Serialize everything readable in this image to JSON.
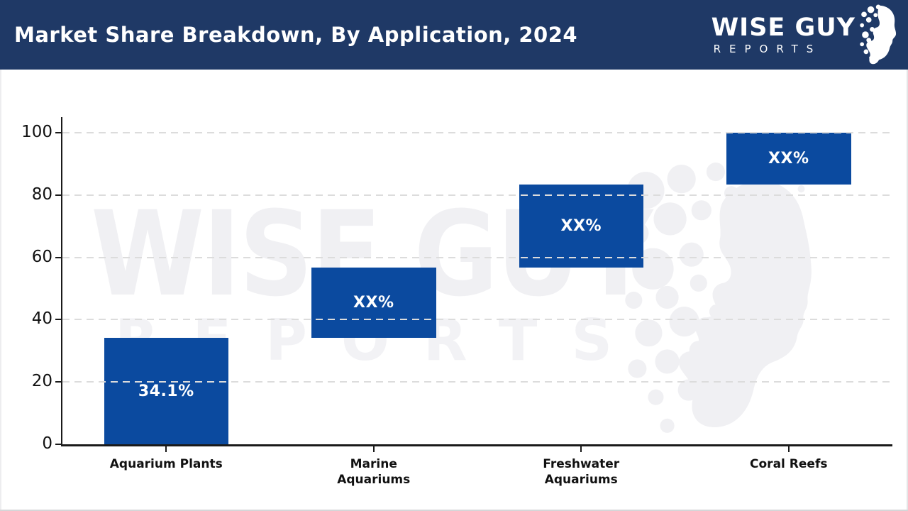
{
  "header": {
    "title": "Market Share Breakdown, By Application, 2024",
    "brand": {
      "name": "WISE GUY",
      "sub": "REPORTS"
    }
  },
  "watermark": {
    "line1": "WISE GUY",
    "line2": "REPORTS"
  },
  "chart_data": {
    "type": "bar",
    "subtype": "floating-segment-waterfall",
    "title": "Market Share Breakdown, By Application, 2024",
    "categories": [
      "Aquarium Plants",
      "Marine Aquariums",
      "Freshwater Aquariums",
      "Coral Reefs"
    ],
    "segments": [
      {
        "category": "Aquarium Plants",
        "from": 0,
        "to": 34.1,
        "label": "34.1%"
      },
      {
        "category": "Marine Aquariums",
        "from": 34.1,
        "to": 56.8,
        "label": "XX%"
      },
      {
        "category": "Freshwater Aquariums",
        "from": 56.8,
        "to": 83.4,
        "label": "XX%"
      },
      {
        "category": "Coral Reefs",
        "from": 83.4,
        "to": 100,
        "label": "XX%"
      }
    ],
    "yticks": [
      0,
      20,
      40,
      60,
      80,
      100
    ],
    "ylim": [
      0,
      105
    ],
    "grid": true,
    "legend": false,
    "colors": {
      "bar": "#0B4A9F",
      "bar_label": "#FFFFFF",
      "grid": "#DCDCDC",
      "axis": "#1A1A1A",
      "header_bg": "#1F3966",
      "watermark": "#F0F0F3"
    }
  }
}
